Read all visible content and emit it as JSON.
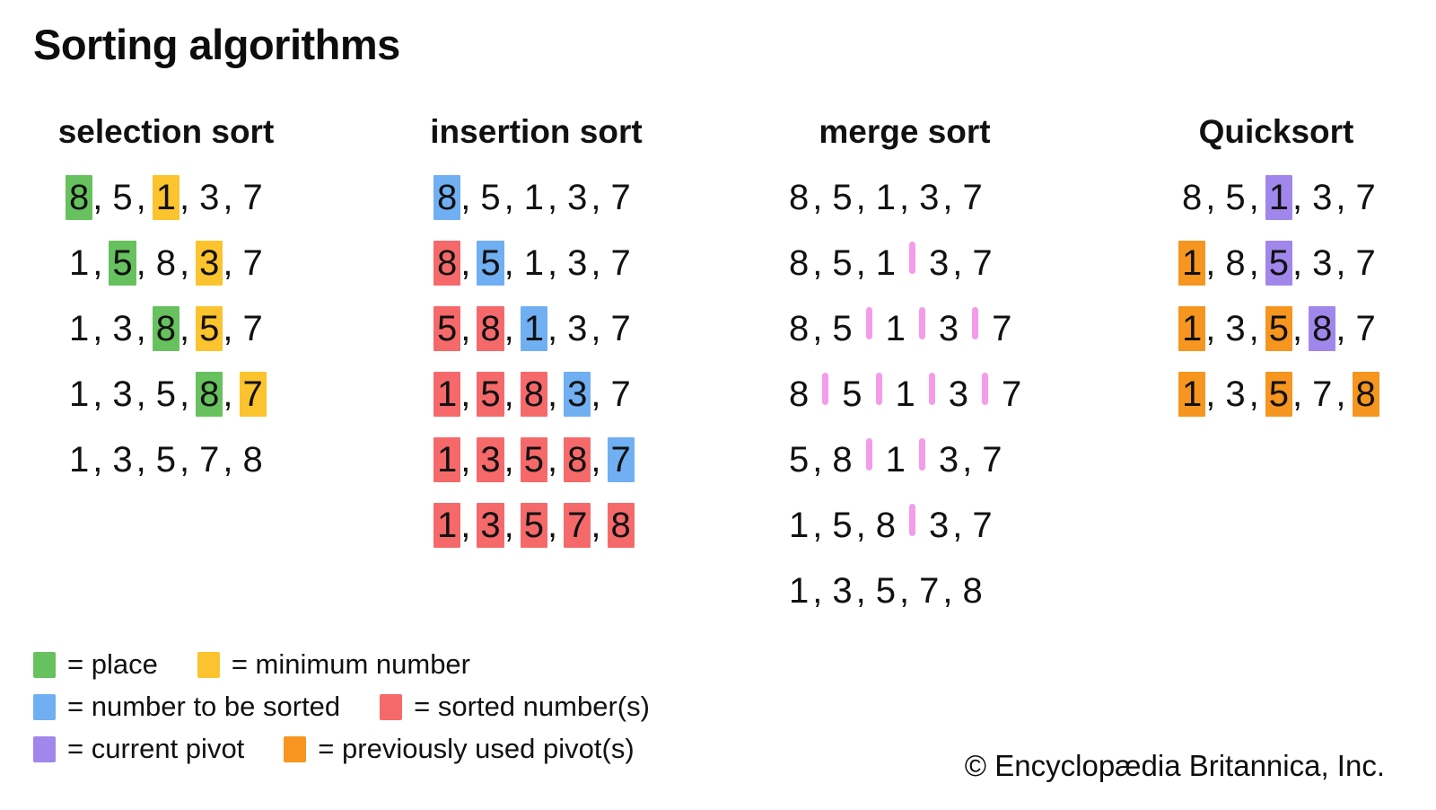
{
  "title": "Sorting algorithms",
  "copyright": "© Encyclopædia Britannica, Inc.",
  "colors": {
    "place": "#68C15F",
    "minimum": "#FBC32D",
    "to_be_sorted": "#70AFF2",
    "sorted": "#F6696B",
    "current_pivot": "#A186EC",
    "previous_pivot": "#F6951F",
    "divider": "#F49BE9"
  },
  "columns": [
    {
      "id": "selection",
      "header": "selection sort",
      "rows": [
        [
          {
            "n": "8",
            "h": "place",
            "c": true
          },
          {
            "n": "5",
            "c": true
          },
          {
            "n": "1",
            "h": "minimum",
            "c": true
          },
          {
            "n": "3",
            "c": true
          },
          {
            "n": "7"
          }
        ],
        [
          {
            "n": "1",
            "c": true
          },
          {
            "n": "5",
            "h": "place",
            "c": true
          },
          {
            "n": "8",
            "c": true
          },
          {
            "n": "3",
            "h": "minimum",
            "c": true
          },
          {
            "n": "7"
          }
        ],
        [
          {
            "n": "1",
            "c": true
          },
          {
            "n": "3",
            "c": true
          },
          {
            "n": "8",
            "h": "place",
            "c": true
          },
          {
            "n": "5",
            "h": "minimum",
            "c": true
          },
          {
            "n": "7"
          }
        ],
        [
          {
            "n": "1",
            "c": true
          },
          {
            "n": "3",
            "c": true
          },
          {
            "n": "5",
            "c": true
          },
          {
            "n": "8",
            "h": "place",
            "c": true
          },
          {
            "n": "7",
            "h": "minimum"
          }
        ],
        [
          {
            "n": "1",
            "c": true
          },
          {
            "n": "3",
            "c": true
          },
          {
            "n": "5",
            "c": true
          },
          {
            "n": "7",
            "c": true
          },
          {
            "n": "8"
          }
        ]
      ]
    },
    {
      "id": "insertion",
      "header": "insertion sort",
      "rows": [
        [
          {
            "n": "8",
            "h": "to_be_sorted",
            "c": true
          },
          {
            "n": "5",
            "c": true
          },
          {
            "n": "1",
            "c": true
          },
          {
            "n": "3",
            "c": true
          },
          {
            "n": "7"
          }
        ],
        [
          {
            "n": "8",
            "h": "sorted",
            "c": true
          },
          {
            "n": "5",
            "h": "to_be_sorted",
            "c": true
          },
          {
            "n": "1",
            "c": true
          },
          {
            "n": "3",
            "c": true
          },
          {
            "n": "7"
          }
        ],
        [
          {
            "n": "5",
            "h": "sorted",
            "c": true
          },
          {
            "n": "8",
            "h": "sorted",
            "c": true
          },
          {
            "n": "1",
            "h": "to_be_sorted",
            "c": true
          },
          {
            "n": "3",
            "c": true
          },
          {
            "n": "7"
          }
        ],
        [
          {
            "n": "1",
            "h": "sorted",
            "c": true
          },
          {
            "n": "5",
            "h": "sorted",
            "c": true
          },
          {
            "n": "8",
            "h": "sorted",
            "c": true
          },
          {
            "n": "3",
            "h": "to_be_sorted",
            "c": true
          },
          {
            "n": "7"
          }
        ],
        [
          {
            "n": "1",
            "h": "sorted",
            "c": true
          },
          {
            "n": "3",
            "h": "sorted",
            "c": true
          },
          {
            "n": "5",
            "h": "sorted",
            "c": true
          },
          {
            "n": "8",
            "h": "sorted",
            "c": true
          },
          {
            "n": "7",
            "h": "to_be_sorted"
          }
        ],
        [
          {
            "n": "1",
            "h": "sorted",
            "c": true
          },
          {
            "n": "3",
            "h": "sorted",
            "c": true
          },
          {
            "n": "5",
            "h": "sorted",
            "c": true
          },
          {
            "n": "7",
            "h": "sorted",
            "c": true
          },
          {
            "n": "8",
            "h": "sorted"
          }
        ]
      ]
    },
    {
      "id": "merge",
      "header": "merge sort",
      "rows": [
        [
          {
            "n": "8",
            "c": true
          },
          {
            "n": "5",
            "c": true
          },
          {
            "n": "1",
            "c": true
          },
          {
            "n": "3",
            "c": true
          },
          {
            "n": "7"
          }
        ],
        [
          {
            "n": "8",
            "c": true
          },
          {
            "n": "5",
            "c": true
          },
          {
            "n": "1"
          },
          {
            "d": true
          },
          {
            "n": "3",
            "c": true
          },
          {
            "n": "7"
          }
        ],
        [
          {
            "n": "8",
            "c": true
          },
          {
            "n": "5"
          },
          {
            "d": true
          },
          {
            "n": "1"
          },
          {
            "d": true
          },
          {
            "n": "3"
          },
          {
            "d": true
          },
          {
            "n": "7"
          }
        ],
        [
          {
            "n": "8"
          },
          {
            "d": true
          },
          {
            "n": "5"
          },
          {
            "d": true
          },
          {
            "n": "1"
          },
          {
            "d": true
          },
          {
            "n": "3"
          },
          {
            "d": true
          },
          {
            "n": "7"
          }
        ],
        [
          {
            "n": "5",
            "c": true
          },
          {
            "n": "8"
          },
          {
            "d": true
          },
          {
            "n": "1"
          },
          {
            "d": true
          },
          {
            "n": "3",
            "c": true
          },
          {
            "n": "7"
          }
        ],
        [
          {
            "n": "1",
            "c": true
          },
          {
            "n": "5",
            "c": true
          },
          {
            "n": "8"
          },
          {
            "d": true
          },
          {
            "n": "3",
            "c": true
          },
          {
            "n": "7"
          }
        ],
        [
          {
            "n": "1",
            "c": true
          },
          {
            "n": "3",
            "c": true
          },
          {
            "n": "5",
            "c": true
          },
          {
            "n": "7",
            "c": true
          },
          {
            "n": "8"
          }
        ]
      ]
    },
    {
      "id": "quicksort",
      "header": "Quicksort",
      "rows": [
        [
          {
            "n": "8",
            "c": true
          },
          {
            "n": "5",
            "c": true
          },
          {
            "n": "1",
            "h": "current_pivot",
            "c": true
          },
          {
            "n": "3",
            "c": true
          },
          {
            "n": "7"
          }
        ],
        [
          {
            "n": "1",
            "h": "previous_pivot",
            "c": true
          },
          {
            "n": "8",
            "c": true
          },
          {
            "n": "5",
            "h": "current_pivot",
            "c": true
          },
          {
            "n": "3",
            "c": true
          },
          {
            "n": "7"
          }
        ],
        [
          {
            "n": "1",
            "h": "previous_pivot",
            "c": true
          },
          {
            "n": "3",
            "c": true
          },
          {
            "n": "5",
            "h": "previous_pivot",
            "c": true
          },
          {
            "n": "8",
            "h": "current_pivot",
            "c": true
          },
          {
            "n": "7"
          }
        ],
        [
          {
            "n": "1",
            "h": "previous_pivot",
            "c": true
          },
          {
            "n": "3",
            "c": true
          },
          {
            "n": "5",
            "h": "previous_pivot",
            "c": true
          },
          {
            "n": "7",
            "c": true
          },
          {
            "n": "8",
            "h": "previous_pivot"
          }
        ]
      ]
    }
  ],
  "legend": {
    "rows": [
      [
        {
          "color": "place",
          "label": "= place"
        },
        {
          "color": "minimum",
          "label": "= minimum number"
        }
      ],
      [
        {
          "color": "to_be_sorted",
          "label": "= number to be sorted"
        },
        {
          "color": "sorted",
          "label": "= sorted number(s)"
        }
      ],
      [
        {
          "color": "current_pivot",
          "label": "= current pivot"
        },
        {
          "color": "previous_pivot",
          "label": "= previously used pivot(s)"
        }
      ]
    ]
  }
}
